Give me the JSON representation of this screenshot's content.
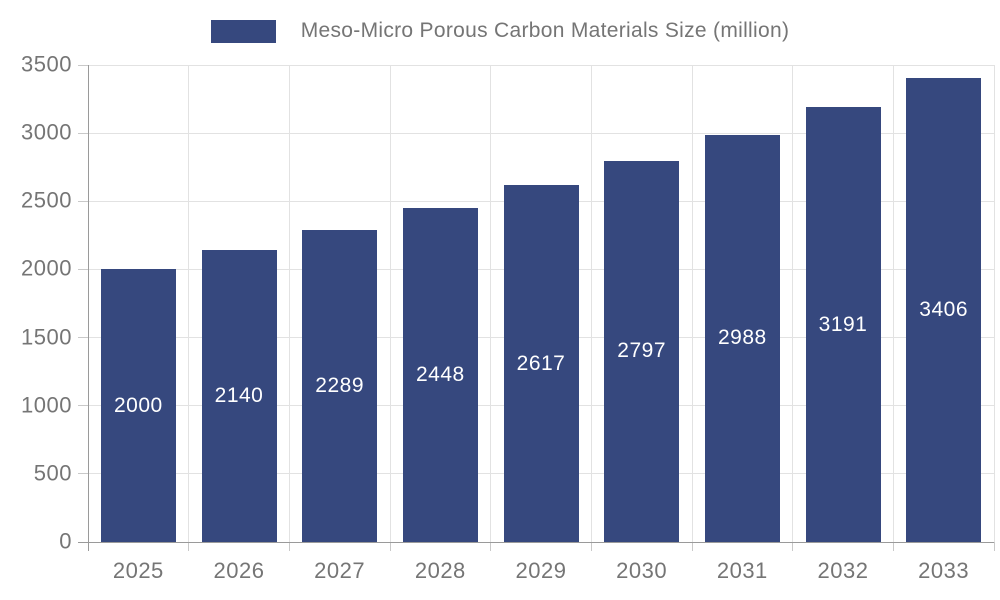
{
  "chart_data": {
    "type": "bar",
    "legend": "Meso-Micro Porous Carbon Materials Size (million)",
    "categories": [
      "2025",
      "2026",
      "2027",
      "2028",
      "2029",
      "2030",
      "2031",
      "2032",
      "2033"
    ],
    "values": [
      2000,
      2140,
      2289,
      2448,
      2617,
      2797,
      2988,
      3191,
      3406
    ],
    "ylim": [
      0,
      3500
    ],
    "y_ticks": [
      0,
      500,
      1000,
      1500,
      2000,
      2500,
      3000,
      3500
    ],
    "grid": true,
    "legend_position": "top",
    "value_labels": "inside-center",
    "colors": {
      "bar": "#36487E",
      "grid": "#E2E2E2",
      "axis": "#9A9A9A",
      "tick_mark": "#C9C9C9",
      "tick_text": "#757575",
      "legend_text": "#757575",
      "value_label": "#FFFFFF",
      "background": "#FFFFFF"
    }
  }
}
